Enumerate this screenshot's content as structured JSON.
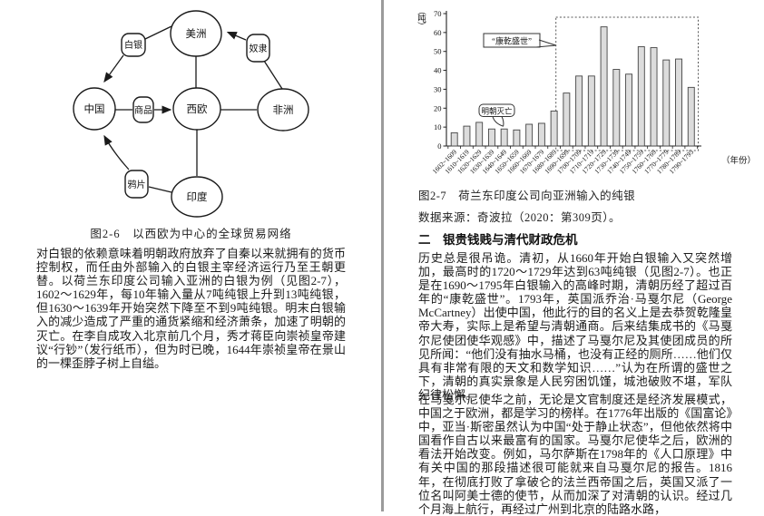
{
  "page_left": {
    "figure": {
      "caption": "图2-6　以西欧为中心的全球贸易网络",
      "nodes": {
        "americas": "美洲",
        "china": "中国",
        "west_europe": "西欧",
        "africa": "非洲",
        "india": "印度"
      },
      "flows": {
        "silver": "白银",
        "slaves": "奴隶",
        "goods": "商品",
        "opium": "鸦片"
      }
    },
    "paragraph": "对白银的依赖意味着明朝政府放弃了自秦以来就拥有的货币控制权，而任由外部输入的白银主宰经济运行乃至王朝更替。以荷兰东印度公司输入亚洲的白银为例（见图2-7），1602～1629年，每10年输入量从7吨纯银上升到13吨纯银，但1630～1639年开始突然下降至不到9吨纯银。明末白银输入的减少造成了严重的通货紧缩和经济萧条，加速了明朝的灭亡。在李自成攻入北京前几个月，秀才蒋臣向崇祯皇帝建议“行钞”（发行纸币），但为时已晚，1644年崇祯皇帝在景山的一棵歪脖子树上自缢。"
  },
  "page_right": {
    "figure_caption": "图2-7　荷兰东印度公司向亚洲输入的纯银",
    "source": "数据来源：奇波拉（2020：第309页）。",
    "section_heading": "二　银贵钱贱与清代财政危机",
    "paragraphs": [
      "历史总是很吊诡。清初，从1660年开始白银输入又突然增加，最高时的1720～1729年达到63吨纯银（见图2-7）。也正是在1690～1795年白银输入的高峰时期，清朝历经了超过百年的“康乾盛世”。1793年，英国派乔治·马戛尔尼（George　McCartney）出使中国，他此行的目的名义上是去恭贺乾隆皇帝大寿，实际上是希望与清朝通商。后来结集成书的《马戛尔尼使团使华观感》中，描述了马戛尔尼及其使团成员的所见所闻：“他们没有抽水马桶，也没有正经的厕所……他们仅具有非常有限的天文和数学知识……”认为在所谓的盛世之下，清朝的真实景象是人民穷困饥馑，城池破败不堪，军队纪律松懈。",
      "在马戛尔尼使华之前，无论是文官制度还是经济发展模式，中国之于欧洲，都是学习的榜样。在1776年出版的《国富论》中，亚当·斯密虽然认为中国“处于静止状态”，但他依然将中国看作自古以来最富有的国家。马戛尔尼使华之后，欧洲的看法开始改变。例如，马尔萨斯在1798年的《人口原理》中有关中国的那段描述很可能就来自马戛尔尼的报告。1816年，在彻底打败了拿破仑的法兰西帝国之后，英国又派了一位名叫阿美士德的使节，从而加深了对清朝的认识。经过几个月海上航行，再经过广州到北京的陆路水路，"
    ]
  },
  "chart_data": {
    "type": "bar",
    "title": "荷兰东印度公司向亚洲输入的纯银",
    "ylabel": "（吨）",
    "xlabel": "（年份）",
    "ylim": [
      0,
      70
    ],
    "yticks": [
      0,
      10,
      20,
      30,
      40,
      50,
      60,
      70
    ],
    "grid": false,
    "legend": "none",
    "categories": [
      "1602~1609",
      "1610~1619",
      "1620~1629",
      "1630~1639",
      "1640~1649",
      "1650~1659",
      "1660~1669",
      "1670~1679",
      "1680~1689",
      "1690~1699",
      "1700~1709",
      "1710~1719",
      "1720~1729",
      "1730~1739",
      "1740~1749",
      "1750~1759",
      "1760~1769",
      "1770~1779",
      "1780~1789",
      "1790~1795"
    ],
    "values": [
      7,
      10.5,
      12.5,
      9,
      9,
      8.5,
      11.5,
      12,
      18.5,
      28,
      37,
      37,
      63,
      40.5,
      38,
      52.5,
      52,
      45.5,
      46,
      31
    ],
    "highlight": {
      "from": "1690~1699",
      "to": "1790~1795",
      "style": "dashed-box"
    },
    "annotations": [
      {
        "text": "“康乾盛世”",
        "points_to": "highlight-box"
      },
      {
        "text": "明朝灭亡",
        "points_to": "1640~1649"
      }
    ],
    "bar_fill": "#dcdcdc",
    "bar_stroke": "#454545",
    "axis_color": "#222222"
  }
}
